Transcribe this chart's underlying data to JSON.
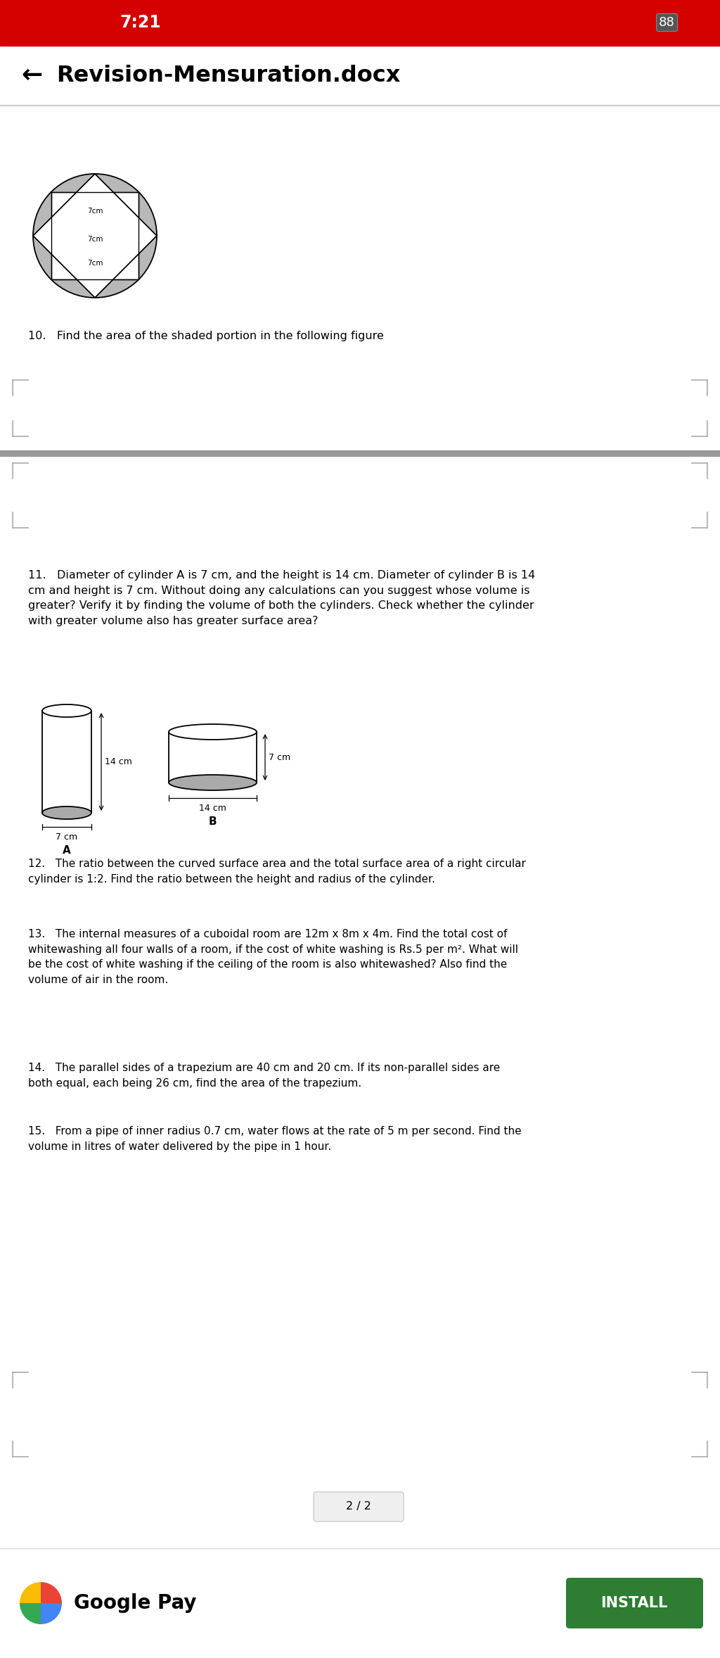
{
  "bg_color": "#ffffff",
  "status_bar_color": "#d50000",
  "status_bar_text": "7:21",
  "status_bar_right": "88",
  "header_title": "Revision-Mensuration.docx",
  "q10_text": "10.   Find the area of the shaded portion in the following figure",
  "q11_text": "11.   Diameter of cylinder A is 7 cm, and the height is 14 cm. Diameter of cylinder B is 14\ncm and height is 7 cm. Without doing any calculations can you suggest whose volume is\ngreater? Verify it by finding the volume of both the cylinders. Check whether the cylinder\nwith greater volume also has greater surface area?",
  "q12_text": "12.   The ratio between the curved surface area and the total surface area of a right circular\ncylinder is 1:2. Find the ratio between the height and radius of the cylinder.",
  "q13_text": "13.   The internal measures of a cuboidal room are 12m x 8m x 4m. Find the total cost of\nwhitewashing all four walls of a room, if the cost of white washing is Rs.5 per m². What will\nbe the cost of white washing if the ceiling of the room is also whitewashed? Also find the\nvolume of air in the room.",
  "q14_text": "14.   The parallel sides of a trapezium are 40 cm and 20 cm. If its non-parallel sides are\nboth equal, each being 26 cm, find the area of the trapezium.",
  "q15_text": "15.   From a pipe of inner radius 0.7 cm, water flows at the rate of 5 m per second. Find the\nvolume in litres of water delivered by the pipe in 1 hour.",
  "page_indicator": "2 / 2",
  "footer_text": "Google Pay",
  "footer_button": "INSTALL",
  "shaded_color": "#b8b8b8",
  "white_color": "#ffffff",
  "black_color": "#000000",
  "separator_color": "#cccccc",
  "corner_color": "#aaaaaa",
  "page_sep_color": "#999999",
  "footer_btn_color": "#2e7d32",
  "google_colors": [
    "#4285F4",
    "#EA4335",
    "#FBBC05",
    "#34A853"
  ]
}
